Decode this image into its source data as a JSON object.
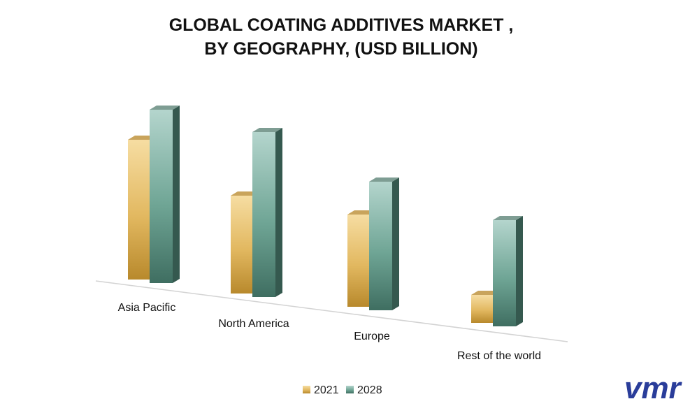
{
  "chart_data": {
    "type": "bar",
    "title_lines": [
      "GLOBAL COATING ADDITIVES MARKET ,",
      "BY GEOGRAPHY, (USD BILLION)"
    ],
    "categories": [
      "Asia Pacific",
      "North America",
      "Europe",
      "Rest of the world"
    ],
    "series": [
      {
        "name": "2021",
        "values": [
          5.0,
          3.5,
          3.3,
          1.0
        ]
      },
      {
        "name": "2028",
        "values": [
          6.2,
          5.9,
          4.6,
          3.8
        ]
      }
    ],
    "xlabel": "",
    "ylabel": "",
    "ylim": [
      0,
      7
    ],
    "grid": false,
    "legend": "bottom-center",
    "colors": {
      "2021": [
        "#f6dda2",
        "#e2b860",
        "#b8892c"
      ],
      "2028": [
        "#b4d5cd",
        "#6fa595",
        "#3f6e61"
      ]
    }
  },
  "logo": {
    "name": "vmr-logo",
    "text": "vmr",
    "color": "#2a3d9a"
  }
}
